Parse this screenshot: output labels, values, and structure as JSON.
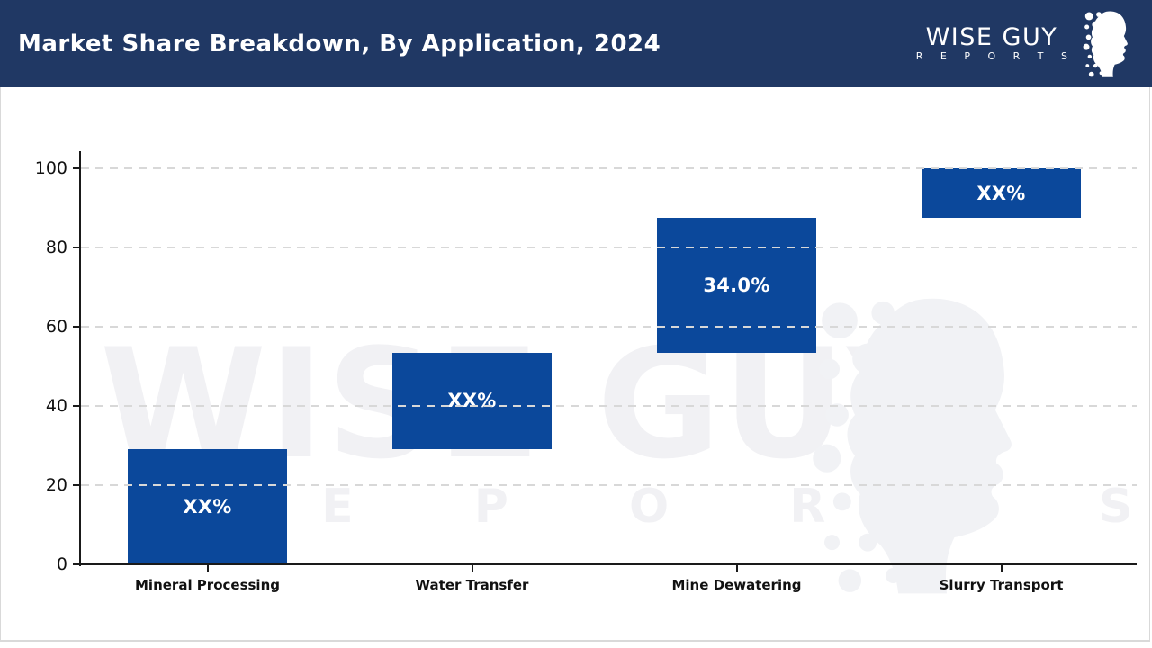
{
  "header": {
    "title": "Market Share Breakdown, By Application, 2024",
    "brand_line1": "WISE GUY",
    "brand_line2": "R E P O R T S",
    "bg_color": "#203864"
  },
  "watermark": {
    "line1": "WISE GUY",
    "line2": "R E P O R T S"
  },
  "chart_data": {
    "type": "bar",
    "style": "waterfall",
    "title": "Market Share Breakdown, By Application, 2024",
    "categories": [
      "Mineral Processing",
      "Water Transfer",
      "Mine Dewatering",
      "Slurry Transport"
    ],
    "segments": [
      {
        "category": "Mineral Processing",
        "start": 0,
        "end": 29,
        "label": "XX%"
      },
      {
        "category": "Water Transfer",
        "start": 29,
        "end": 53.5,
        "label": "XX%"
      },
      {
        "category": "Mine Dewatering",
        "start": 53.5,
        "end": 87.5,
        "label": "34.0%"
      },
      {
        "category": "Slurry Transport",
        "start": 87.5,
        "end": 100,
        "label": "XX%"
      }
    ],
    "yticks": [
      0,
      20,
      40,
      60,
      80,
      100
    ],
    "ylim": [
      0,
      107
    ],
    "xlabel": "",
    "ylabel": "",
    "grid": "horizontal-dashed-on-top",
    "legend": "none",
    "bar_color": "#0b489b",
    "bar_label_color": "#ffffff",
    "axis_color": "#1a1a1a",
    "gridline_color": "#d8d8d8"
  }
}
